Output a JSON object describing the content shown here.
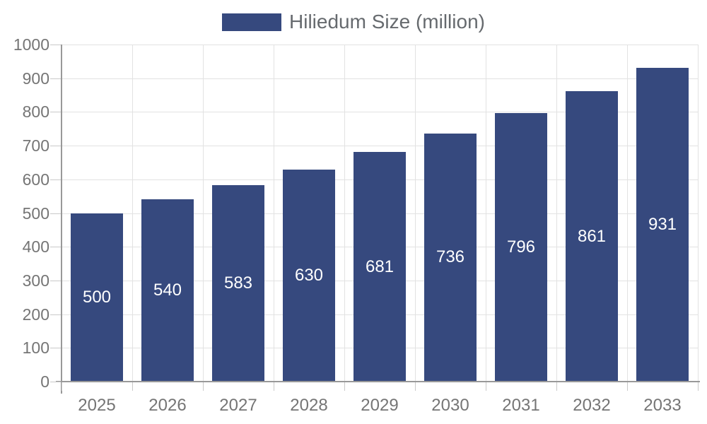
{
  "legend": {
    "label": "Hiliedum Size (million)"
  },
  "colors": {
    "bar": "#36497e",
    "bar_label": "#ffffff",
    "axis_line": "#999999",
    "grid_line": "#e2e2e2",
    "tick_mark": "#c9c9c9",
    "tick_label": "#757575",
    "legend_text": "#666a6e"
  },
  "chart_data": {
    "type": "bar",
    "title": "",
    "categories": [
      "2025",
      "2026",
      "2027",
      "2028",
      "2029",
      "2030",
      "2031",
      "2032",
      "2033"
    ],
    "series": [
      {
        "name": "Hiliedum Size (million)",
        "values": [
          500,
          540,
          583,
          630,
          681,
          736,
          796,
          861,
          931
        ]
      }
    ],
    "value_labels": [
      "500",
      "540",
      "583",
      "630",
      "681",
      "736",
      "796",
      "861",
      "931"
    ],
    "xlabel": "",
    "ylabel": "",
    "ylim": [
      0,
      1000
    ],
    "ytick_step": 100,
    "ytick_labels": [
      "0",
      "100",
      "200",
      "300",
      "400",
      "500",
      "600",
      "700",
      "800",
      "900",
      "1000"
    ],
    "grid": true,
    "legend_position": "top-center",
    "value_label_position": "inside-center"
  }
}
